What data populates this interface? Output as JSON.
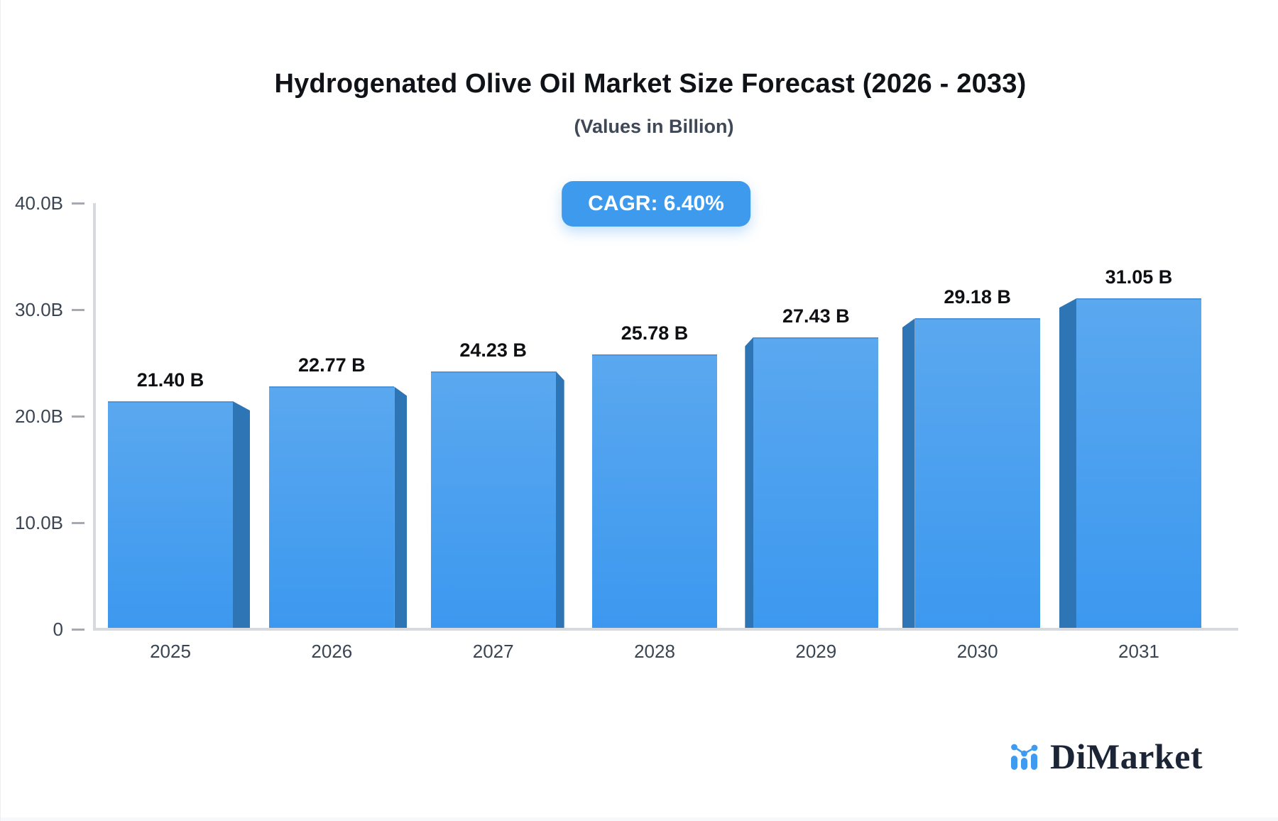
{
  "header": {
    "title": "Hydrogenated Olive Oil Market Size Forecast (2026 - 2033)",
    "subtitle": "(Values in Billion)",
    "cagr_label": "CAGR: 6.40%"
  },
  "brand": {
    "name": "DiMarket"
  },
  "colors": {
    "badge_bg": "#3D9AEC",
    "bar_front_top": "#5AA8EF",
    "bar_front_bottom": "#3C98EF",
    "bar_side": "#2E75B5",
    "axis_line": "#D6DADE",
    "tick_dash": "#A3AAB4",
    "axis_text": "#3A4553",
    "value_text": "#0E1013",
    "logo_blue": "#3F9BF0",
    "logo_navy": "#1B2536"
  },
  "chart_data": {
    "type": "bar",
    "title": "Hydrogenated Olive Oil Market Size Forecast (2026 - 2033)",
    "subtitle": "(Values in Billion)",
    "xlabel": "",
    "ylabel": "",
    "categories": [
      "2025",
      "2026",
      "2027",
      "2028",
      "2029",
      "2030",
      "2031"
    ],
    "values": [
      21.4,
      22.77,
      24.23,
      25.78,
      27.43,
      29.18,
      31.05
    ],
    "bar_labels": [
      "21.40 B",
      "22.77 B",
      "24.23 B",
      "25.78 B",
      "27.43 B",
      "29.18 B",
      "31.05 B"
    ],
    "unit": "Billion",
    "cagr": "6.40%",
    "ylim": [
      0,
      40
    ],
    "y_ticks": [
      {
        "label": "40.0B",
        "value": 40
      },
      {
        "label": "30.0B",
        "value": 30
      },
      {
        "label": "20.0B",
        "value": 20
      },
      {
        "label": "10.0B",
        "value": 10
      },
      {
        "label": "0",
        "value": 0
      }
    ],
    "grid": false,
    "legend": "none"
  }
}
